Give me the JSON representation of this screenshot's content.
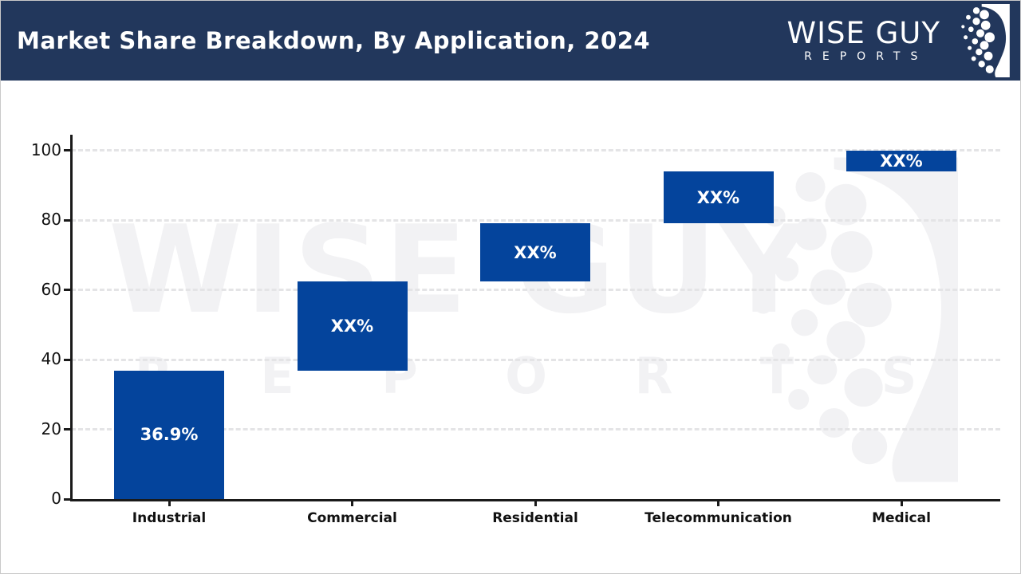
{
  "header": {
    "title": "Market Share Breakdown, By Application, 2024",
    "logo_line1": "WISE GUY",
    "logo_line2": "REPORTS"
  },
  "watermark": {
    "line1": "WISE GUY",
    "line2": "R E P O R T S"
  },
  "colors": {
    "header_bg": "#22375c",
    "bar_fill": "#04449c",
    "grid_line": "#e4e4e6",
    "axis_line": "#1a1a1a",
    "bar_label_text": "#ffffff",
    "tick_label_text": "#111111",
    "watermark_gray": "#f2f2f4"
  },
  "chart_data": {
    "type": "bar",
    "subtype": "waterfall",
    "title": "Market Share Breakdown, By Application, 2024",
    "categories": [
      "Industrial",
      "Commercial",
      "Residential",
      "Telecommunication",
      "Medical"
    ],
    "bars": [
      {
        "category": "Industrial",
        "start": 0,
        "end": 36.9,
        "label": "36.9%"
      },
      {
        "category": "Commercial",
        "start": 36.9,
        "end": 62.5,
        "label": "XX%"
      },
      {
        "category": "Residential",
        "start": 62.5,
        "end": 79.0,
        "label": "XX%"
      },
      {
        "category": "Telecommunication",
        "start": 79.0,
        "end": 94.0,
        "label": "XX%"
      },
      {
        "category": "Medical",
        "start": 94.0,
        "end": 100.0,
        "label": "XX%"
      }
    ],
    "yticks": [
      0,
      20,
      40,
      60,
      80,
      100
    ],
    "ylim": [
      0,
      104
    ],
    "xlabel": "",
    "ylabel": "",
    "grid": "horizontal-dashed",
    "legend": false
  }
}
